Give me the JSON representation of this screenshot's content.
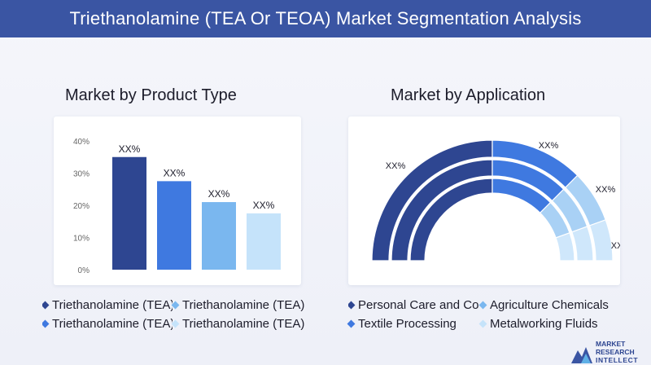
{
  "title": "Triethanolamine (TEA Or TEOA) Market Segmentation Analysis",
  "colors": {
    "header": "#3a55a3",
    "dark_navy": "#2e4691",
    "blue": "#3f79e0",
    "light_blue": "#7ab7ef",
    "pale_blue": "#c5e3fa"
  },
  "product_type": {
    "heading": "Market by Product Type",
    "chart_data": {
      "type": "bar",
      "categories": [
        "Triethanolamine (TEA)",
        "Triethanolamine (TEA)",
        "Triethanolamine (TEA)",
        "Triethanolamine (TEA)"
      ],
      "values": [
        35,
        27.5,
        21,
        17.5
      ],
      "data_labels": [
        "XX%",
        "XX%",
        "XX%",
        "XX%"
      ],
      "colors": [
        "#2e4691",
        "#3f79e0",
        "#7ab7ef",
        "#c5e3fa"
      ],
      "yticks": [
        "40%",
        "30%",
        "20%",
        "10%",
        "0%"
      ],
      "ylim": [
        0,
        40
      ],
      "grid": false
    },
    "legend": [
      {
        "label": "Triethanolamine (TEA)",
        "color": "#2e4691"
      },
      {
        "label": "Triethanolamine (TEA)",
        "color": "#7ab7ef"
      },
      {
        "label": "Triethanolamine (TEA)",
        "color": "#3f79e0"
      },
      {
        "label": "Triethanolamine (TEA)",
        "color": "#c5e3fa"
      }
    ]
  },
  "application": {
    "heading": "Market by Application",
    "chart_data": {
      "type": "pie",
      "variant": "semi-donut",
      "categories": [
        "Personal Care and Co",
        "Textile Processing",
        "Agriculture Chemicals",
        "Metalworking Fluids"
      ],
      "values": [
        50,
        25,
        14,
        11
      ],
      "data_labels": [
        "XX%",
        "XX%",
        "XX%",
        "XX%"
      ],
      "colors": [
        "#2e4691",
        "#3f79e0",
        "#a9d1f5",
        "#cfe7fb"
      ]
    },
    "legend": [
      {
        "label": "Personal Care and Co",
        "color": "#2e4691"
      },
      {
        "label": "Agriculture Chemicals",
        "color": "#7ab7ef"
      },
      {
        "label": "Textile Processing",
        "color": "#3f79e0"
      },
      {
        "label": "Metalworking Fluids",
        "color": "#c5e3fa"
      }
    ]
  },
  "logo": {
    "line1": "MARKET",
    "line2": "RESEARCH",
    "line3": "INTELLECT"
  }
}
